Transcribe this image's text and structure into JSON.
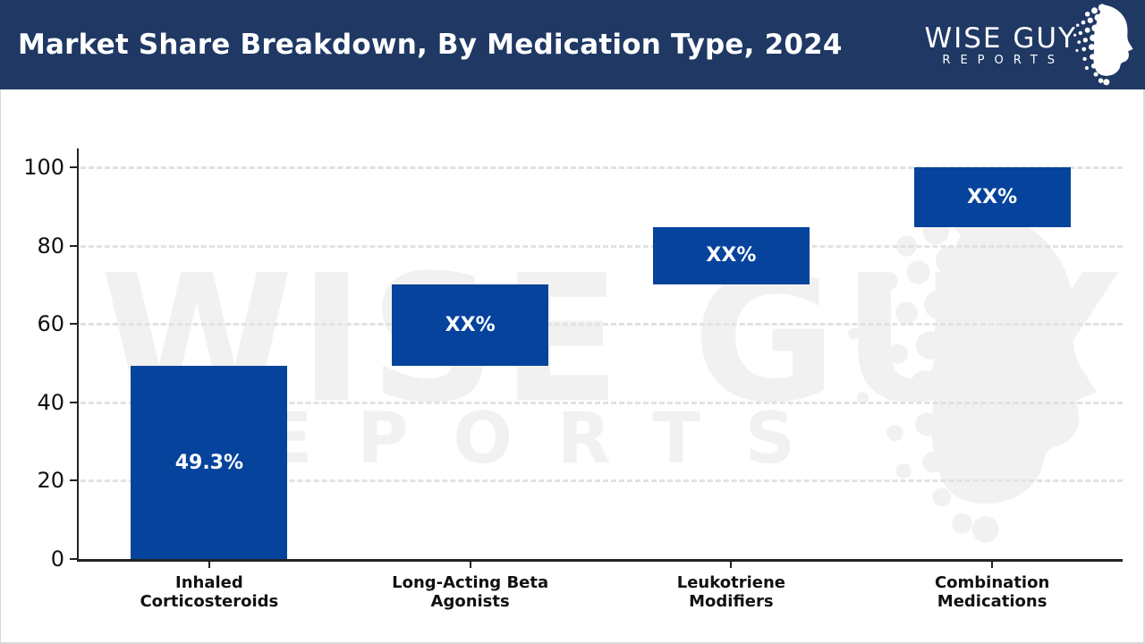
{
  "header": {
    "title": "Market Share Breakdown, By Medication Type, 2024",
    "logo": {
      "name": "WISE GUY",
      "sub": "REPORTS"
    }
  },
  "watermark": {
    "line1": "WISE GUY",
    "line2": "REPORTS"
  },
  "colors": {
    "header_bg": "#1f3864",
    "bar": "#05439c",
    "axis": "#222222",
    "gridline": "#e2e2e2",
    "watermark": "#f1f1f1",
    "value_label": "#ffffff",
    "page_border": "#d9d9d9"
  },
  "chart_data": {
    "type": "bar",
    "subtype": "waterfall",
    "title": "Market Share Breakdown, By Medication Type, 2024",
    "categories": [
      [
        "Inhaled",
        "Corticosteroids"
      ],
      [
        "Long-Acting Beta",
        "Agonists"
      ],
      [
        "Leukotriene",
        "Modifiers"
      ],
      [
        "Combination",
        "Medications"
      ]
    ],
    "bars": [
      {
        "value_label": "49.3%",
        "base": 0,
        "top": 49.3
      },
      {
        "value_label": "XX%",
        "base": 49.3,
        "top": 70.2
      },
      {
        "value_label": "XX%",
        "base": 70.2,
        "top": 84.6
      },
      {
        "value_label": "XX%",
        "base": 84.6,
        "top": 100
      }
    ],
    "xlabel": "",
    "ylabel": "",
    "ylim": [
      0,
      100
    ],
    "yticks": [
      0,
      20,
      40,
      60,
      80,
      100
    ],
    "grid": "horizontal-dashed",
    "legend": "none",
    "bar_color": "#05439c",
    "value_label_color": "#ffffff"
  }
}
